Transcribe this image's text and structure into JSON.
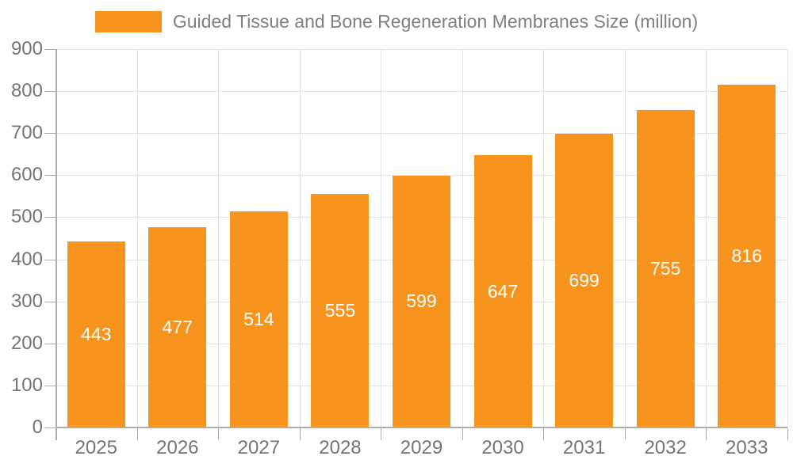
{
  "legend": {
    "label": "Guided Tissue and Bone Regeneration Membranes Size (million)"
  },
  "chart_data": {
    "type": "bar",
    "title": "Guided Tissue and Bone Regeneration Membranes Size (million)",
    "categories": [
      "2025",
      "2026",
      "2027",
      "2028",
      "2029",
      "2030",
      "2031",
      "2032",
      "2033"
    ],
    "values": [
      443,
      477,
      514,
      555,
      599,
      647,
      699,
      755,
      816
    ],
    "series": [
      {
        "name": "Guided Tissue and Bone Regeneration Membranes Size (million)",
        "values": [
          443,
          477,
          514,
          555,
          599,
          647,
          699,
          755,
          816
        ]
      }
    ],
    "xlabel": "",
    "ylabel": "",
    "ylim": [
      0,
      900
    ],
    "ytick_step": 100,
    "ytick_labels": [
      "0",
      "100",
      "200",
      "300",
      "400",
      "500",
      "600",
      "700",
      "800",
      "900"
    ],
    "grid": true,
    "legend_position": "top",
    "value_labels_inside_bars": true,
    "colors": {
      "bar": "#F7941E",
      "grid": "#E3E3E3",
      "axis": "#ADADAD",
      "tick_text": "#757575",
      "legend_text": "#808080",
      "value_label": "#FFFFFF",
      "background": "#FFFFFF"
    }
  }
}
